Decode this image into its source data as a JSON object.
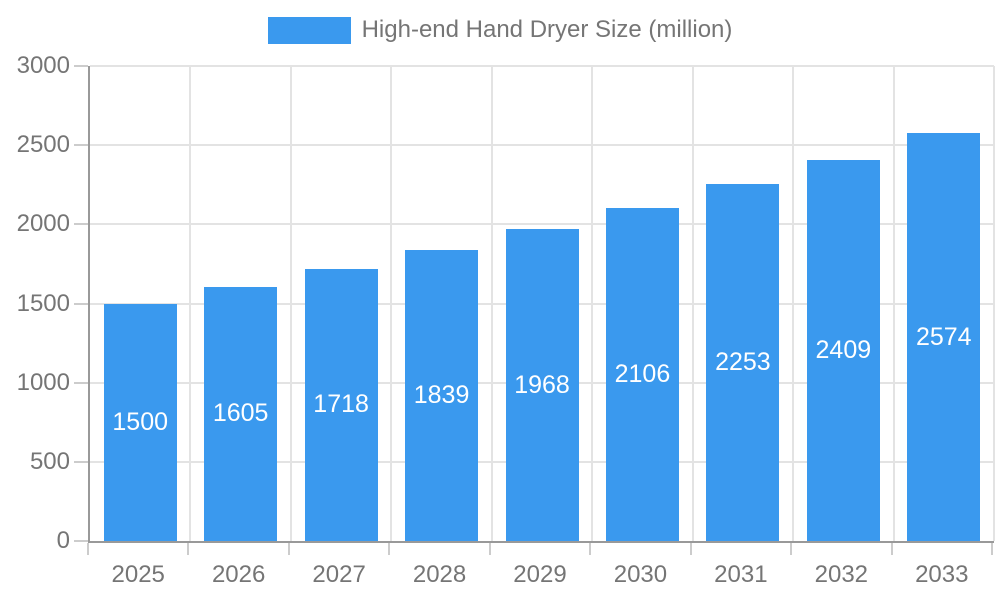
{
  "chart_data": {
    "type": "bar",
    "title": "High-end Hand Dryer Size (million)",
    "legend": {
      "entries": [
        "High-end Hand Dryer Size (million)"
      ],
      "position": "top-center"
    },
    "categories": [
      "2025",
      "2026",
      "2027",
      "2028",
      "2029",
      "2030",
      "2031",
      "2032",
      "2033"
    ],
    "series": [
      {
        "name": "High-end Hand Dryer Size (million)",
        "values": [
          1500,
          1605,
          1718,
          1839,
          1968,
          2106,
          2253,
          2409,
          2574
        ]
      }
    ],
    "xlabel": "",
    "ylabel": "",
    "ylim": [
      0,
      3000
    ],
    "y_ticks": [
      0,
      500,
      1000,
      1500,
      2000,
      2500,
      3000
    ],
    "grid": "on",
    "bar_labels_shown": true,
    "colors": {
      "bar": "#3A99EE",
      "bar_label_text": "#ffffff",
      "axis_text": "#757575",
      "axis_line": "#999999",
      "grid_line": "#e3e3e3",
      "tick_mark": "#cccccc",
      "background": "#ffffff"
    }
  }
}
